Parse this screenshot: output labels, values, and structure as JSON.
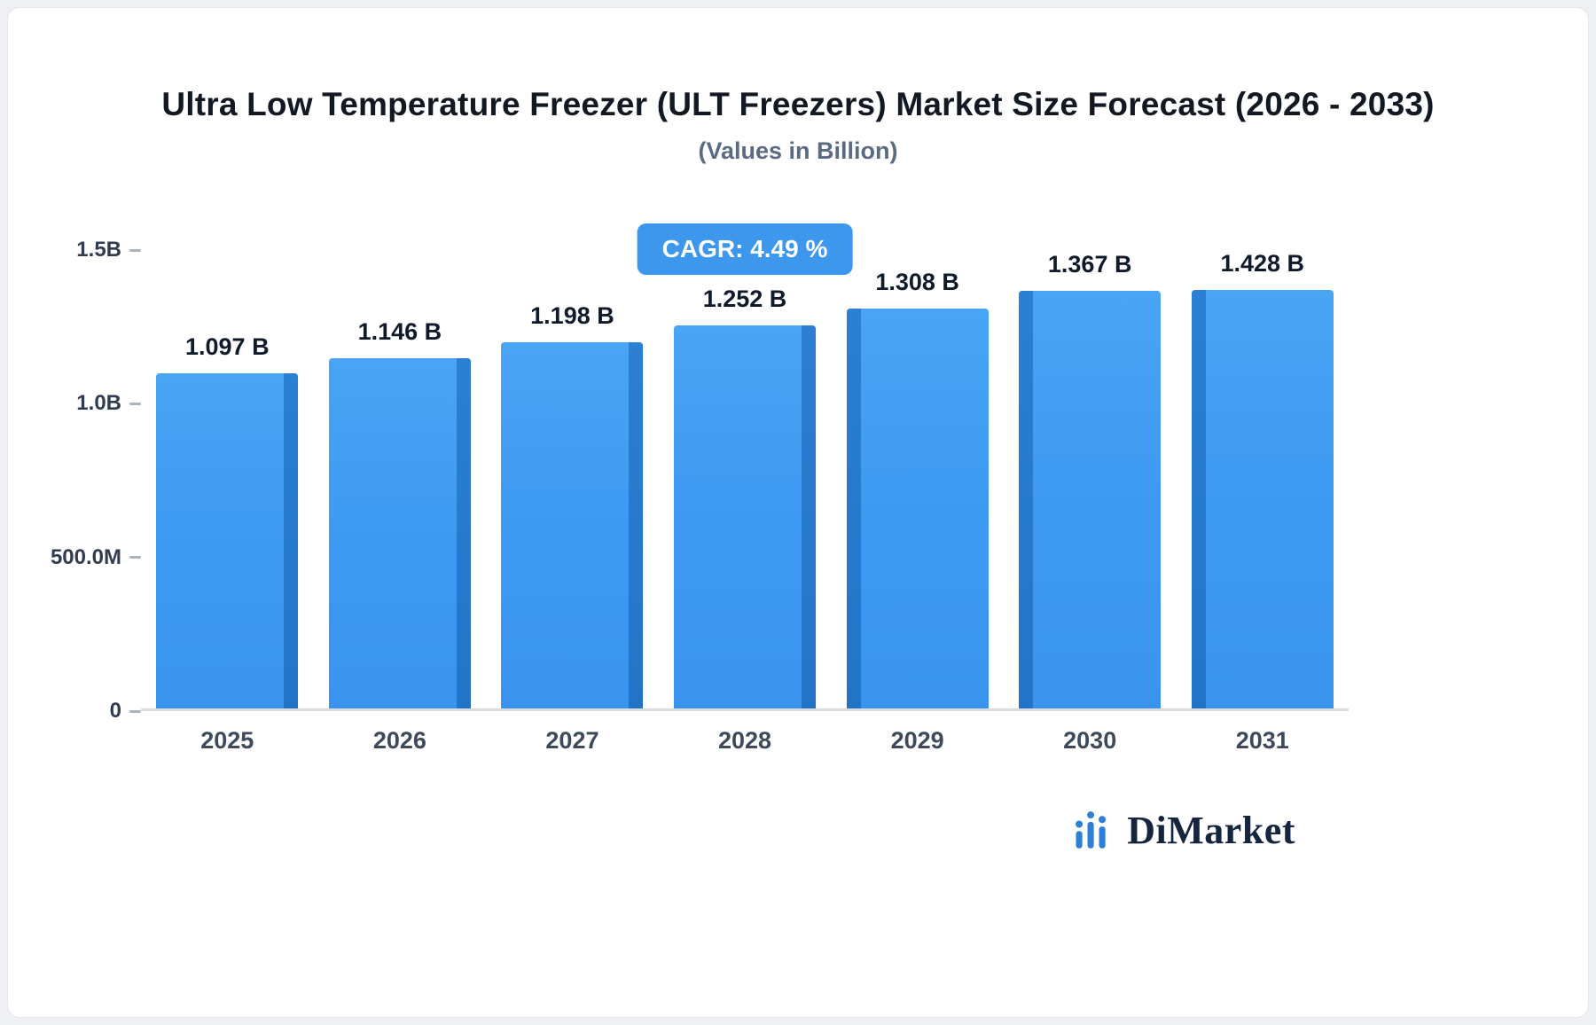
{
  "header": {
    "title": "Ultra Low Temperature Freezer (ULT Freezers) Market Size Forecast (2026 - 2033)",
    "subtitle": "(Values in Billion)"
  },
  "badge": {
    "label": "CAGR: 4.49 %",
    "color": "#3d97ed"
  },
  "chart_data": {
    "type": "bar",
    "categories": [
      "2025",
      "2026",
      "2027",
      "2028",
      "2029",
      "2030",
      "2031"
    ],
    "values": [
      1.097,
      1.146,
      1.198,
      1.252,
      1.308,
      1.367,
      1.428
    ],
    "value_labels": [
      "1.097 B",
      "1.146 B",
      "1.198 B",
      "1.252 B",
      "1.308 B",
      "1.367 B",
      "1.428 B"
    ],
    "title": "Ultra Low Temperature Freezer (ULT Freezers) Market Size Forecast (2026 - 2033)",
    "subtitle": "(Values in Billion)",
    "xlabel": "",
    "ylabel": "",
    "ylim": [
      0,
      1.5
    ],
    "yticks": [
      {
        "value": 0,
        "label": "0"
      },
      {
        "value": 0.5,
        "label": "500.0M"
      },
      {
        "value": 1.0,
        "label": "1.0B"
      },
      {
        "value": 1.5,
        "label": "1.5B"
      }
    ],
    "grid": false,
    "legend": false,
    "annotation": "CAGR: 4.49 %",
    "bar_color": "#3d99f1",
    "bar_side_color": "#2274c7"
  },
  "logo": {
    "text": "DiMarket",
    "icon": "mini-bar-chart-icon",
    "icon_color": "#2e7fd6",
    "text_color": "#16253e"
  }
}
